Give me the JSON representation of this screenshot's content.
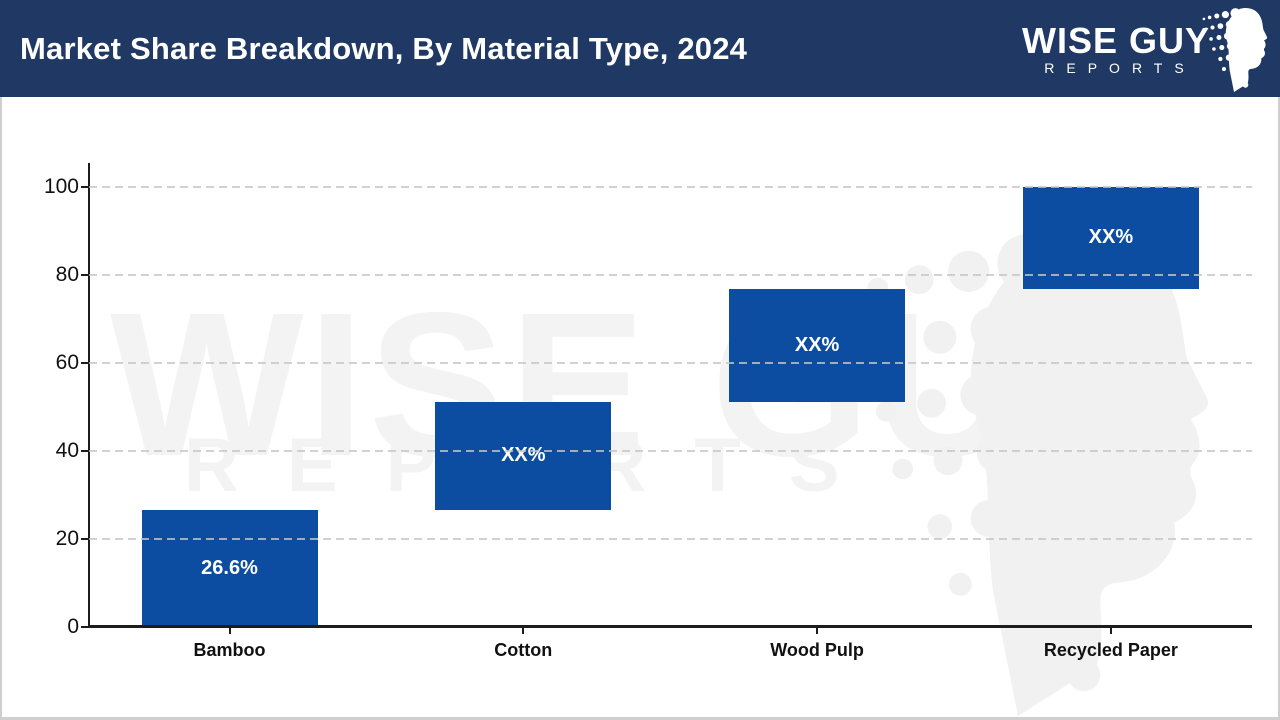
{
  "header": {
    "title": "Market Share Breakdown, By Material Type, 2024",
    "bg_color": "#1F3864",
    "logo": {
      "name": "WISE GUY",
      "reports": "REPORTS"
    }
  },
  "watermark": {
    "line1": "WISE GU",
    "line2": "REPORTS"
  },
  "chart_data": {
    "type": "bar",
    "subtype": "waterfall",
    "title": "Market Share Breakdown, By Material Type, 2024",
    "categories": [
      "Bamboo",
      "Cotton",
      "Wood Pulp",
      "Recycled Paper"
    ],
    "segments": [
      {
        "category": "Bamboo",
        "start": 0,
        "end": 26.6
      },
      {
        "category": "Cotton",
        "start": 26.6,
        "end": 51.0
      },
      {
        "category": "Wood Pulp",
        "start": 51.0,
        "end": 76.8
      },
      {
        "category": "Recycled Paper",
        "start": 76.8,
        "end": 100
      }
    ],
    "bar_labels": [
      "26.6%",
      "XX%",
      "XX%",
      "XX%"
    ],
    "xlabel": "",
    "ylabel": "",
    "ylim": [
      0,
      100
    ],
    "yticks": [
      0,
      20,
      40,
      60,
      80,
      100
    ],
    "bar_color": "#0C4DA2",
    "label_color": "#ffffff",
    "grid": "dashed-horizontal",
    "legend_position": "none"
  }
}
